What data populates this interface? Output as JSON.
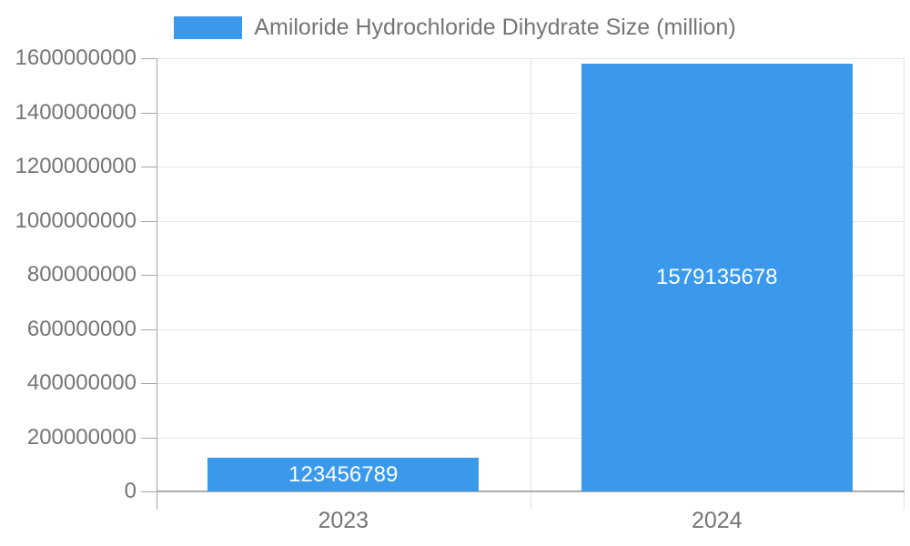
{
  "legend": {
    "label": "Amiloride Hydrochloride Dihydrate Size (million)",
    "swatch_color": "#3b99ec"
  },
  "chart_data": {
    "type": "bar",
    "title": "",
    "xlabel": "",
    "ylabel": "",
    "categories": [
      "2023",
      "2024"
    ],
    "series": [
      {
        "name": "Amiloride Hydrochloride Dihydrate Size (million)",
        "color": "#3b99ec",
        "values": [
          123456789,
          1579135678
        ]
      }
    ],
    "bar_value_labels": [
      "123456789",
      "1579135678"
    ],
    "ylim": [
      0,
      1600000000
    ],
    "ytick_step": 200000000,
    "yticks": [
      0,
      200000000,
      400000000,
      600000000,
      800000000,
      1000000000,
      1200000000,
      1400000000,
      1600000000
    ],
    "ytick_labels": [
      "0",
      "200000000",
      "400000000",
      "600000000",
      "800000000",
      "1000000000",
      "1200000000",
      "1400000000",
      "1600000000"
    ],
    "grid": true,
    "legend_position": "top",
    "colors": {
      "bar": "#3b99ec",
      "value_label_text": "#ffffff",
      "axis_text": "#757575",
      "gridline": "#e6e6e6",
      "axis_line": "#ababab",
      "background": "#ffffff"
    }
  }
}
